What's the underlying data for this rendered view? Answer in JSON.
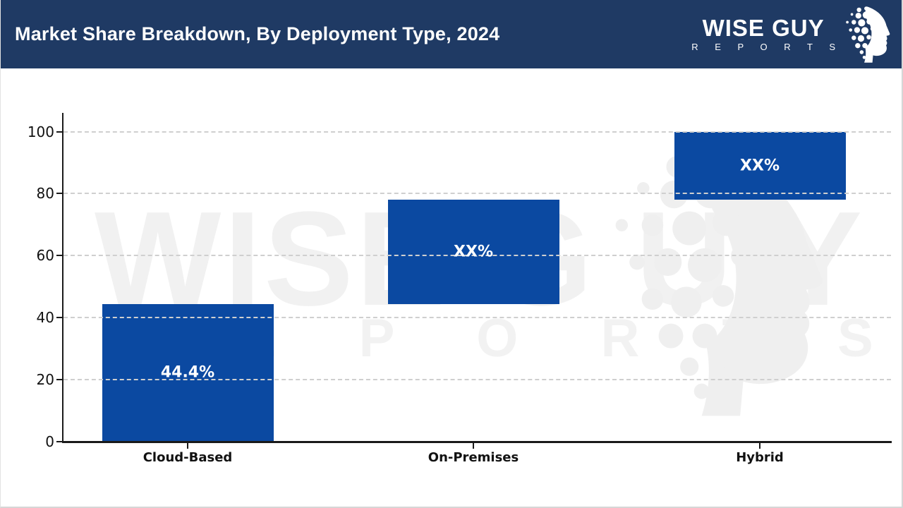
{
  "header": {
    "title": "Market Share Breakdown, By Deployment Type, 2024",
    "bg_color": "#1f3a64"
  },
  "logo": {
    "line1": "WISE GUY",
    "line2": "R E P O R T S"
  },
  "watermark": {
    "line1": "WISE G U Y",
    "line2": "R E P O R T S"
  },
  "chart_data": {
    "type": "bar",
    "subtype": "floating-segment-waterfall",
    "title": "Market Share Breakdown, By Deployment Type, 2024",
    "categories": [
      "Cloud-Based",
      "On-Premises",
      "Hybrid"
    ],
    "segments": [
      {
        "category": "Cloud-Based",
        "start": 0,
        "end": 44.4,
        "label": "44.4%"
      },
      {
        "category": "On-Premises",
        "start": 44.4,
        "end": 78,
        "label": "XX%"
      },
      {
        "category": "Hybrid",
        "start": 78,
        "end": 100,
        "label": "XX%"
      }
    ],
    "yticks": [
      0,
      20,
      40,
      60,
      80,
      100
    ],
    "ylim": [
      0,
      106
    ],
    "xlabel": "",
    "ylabel": "",
    "bar_color": "#0b49a1",
    "label_color": "#ffffff",
    "grid": "horizontal-dashed",
    "gridline_color": "#cfcfcf",
    "legend": "none"
  }
}
